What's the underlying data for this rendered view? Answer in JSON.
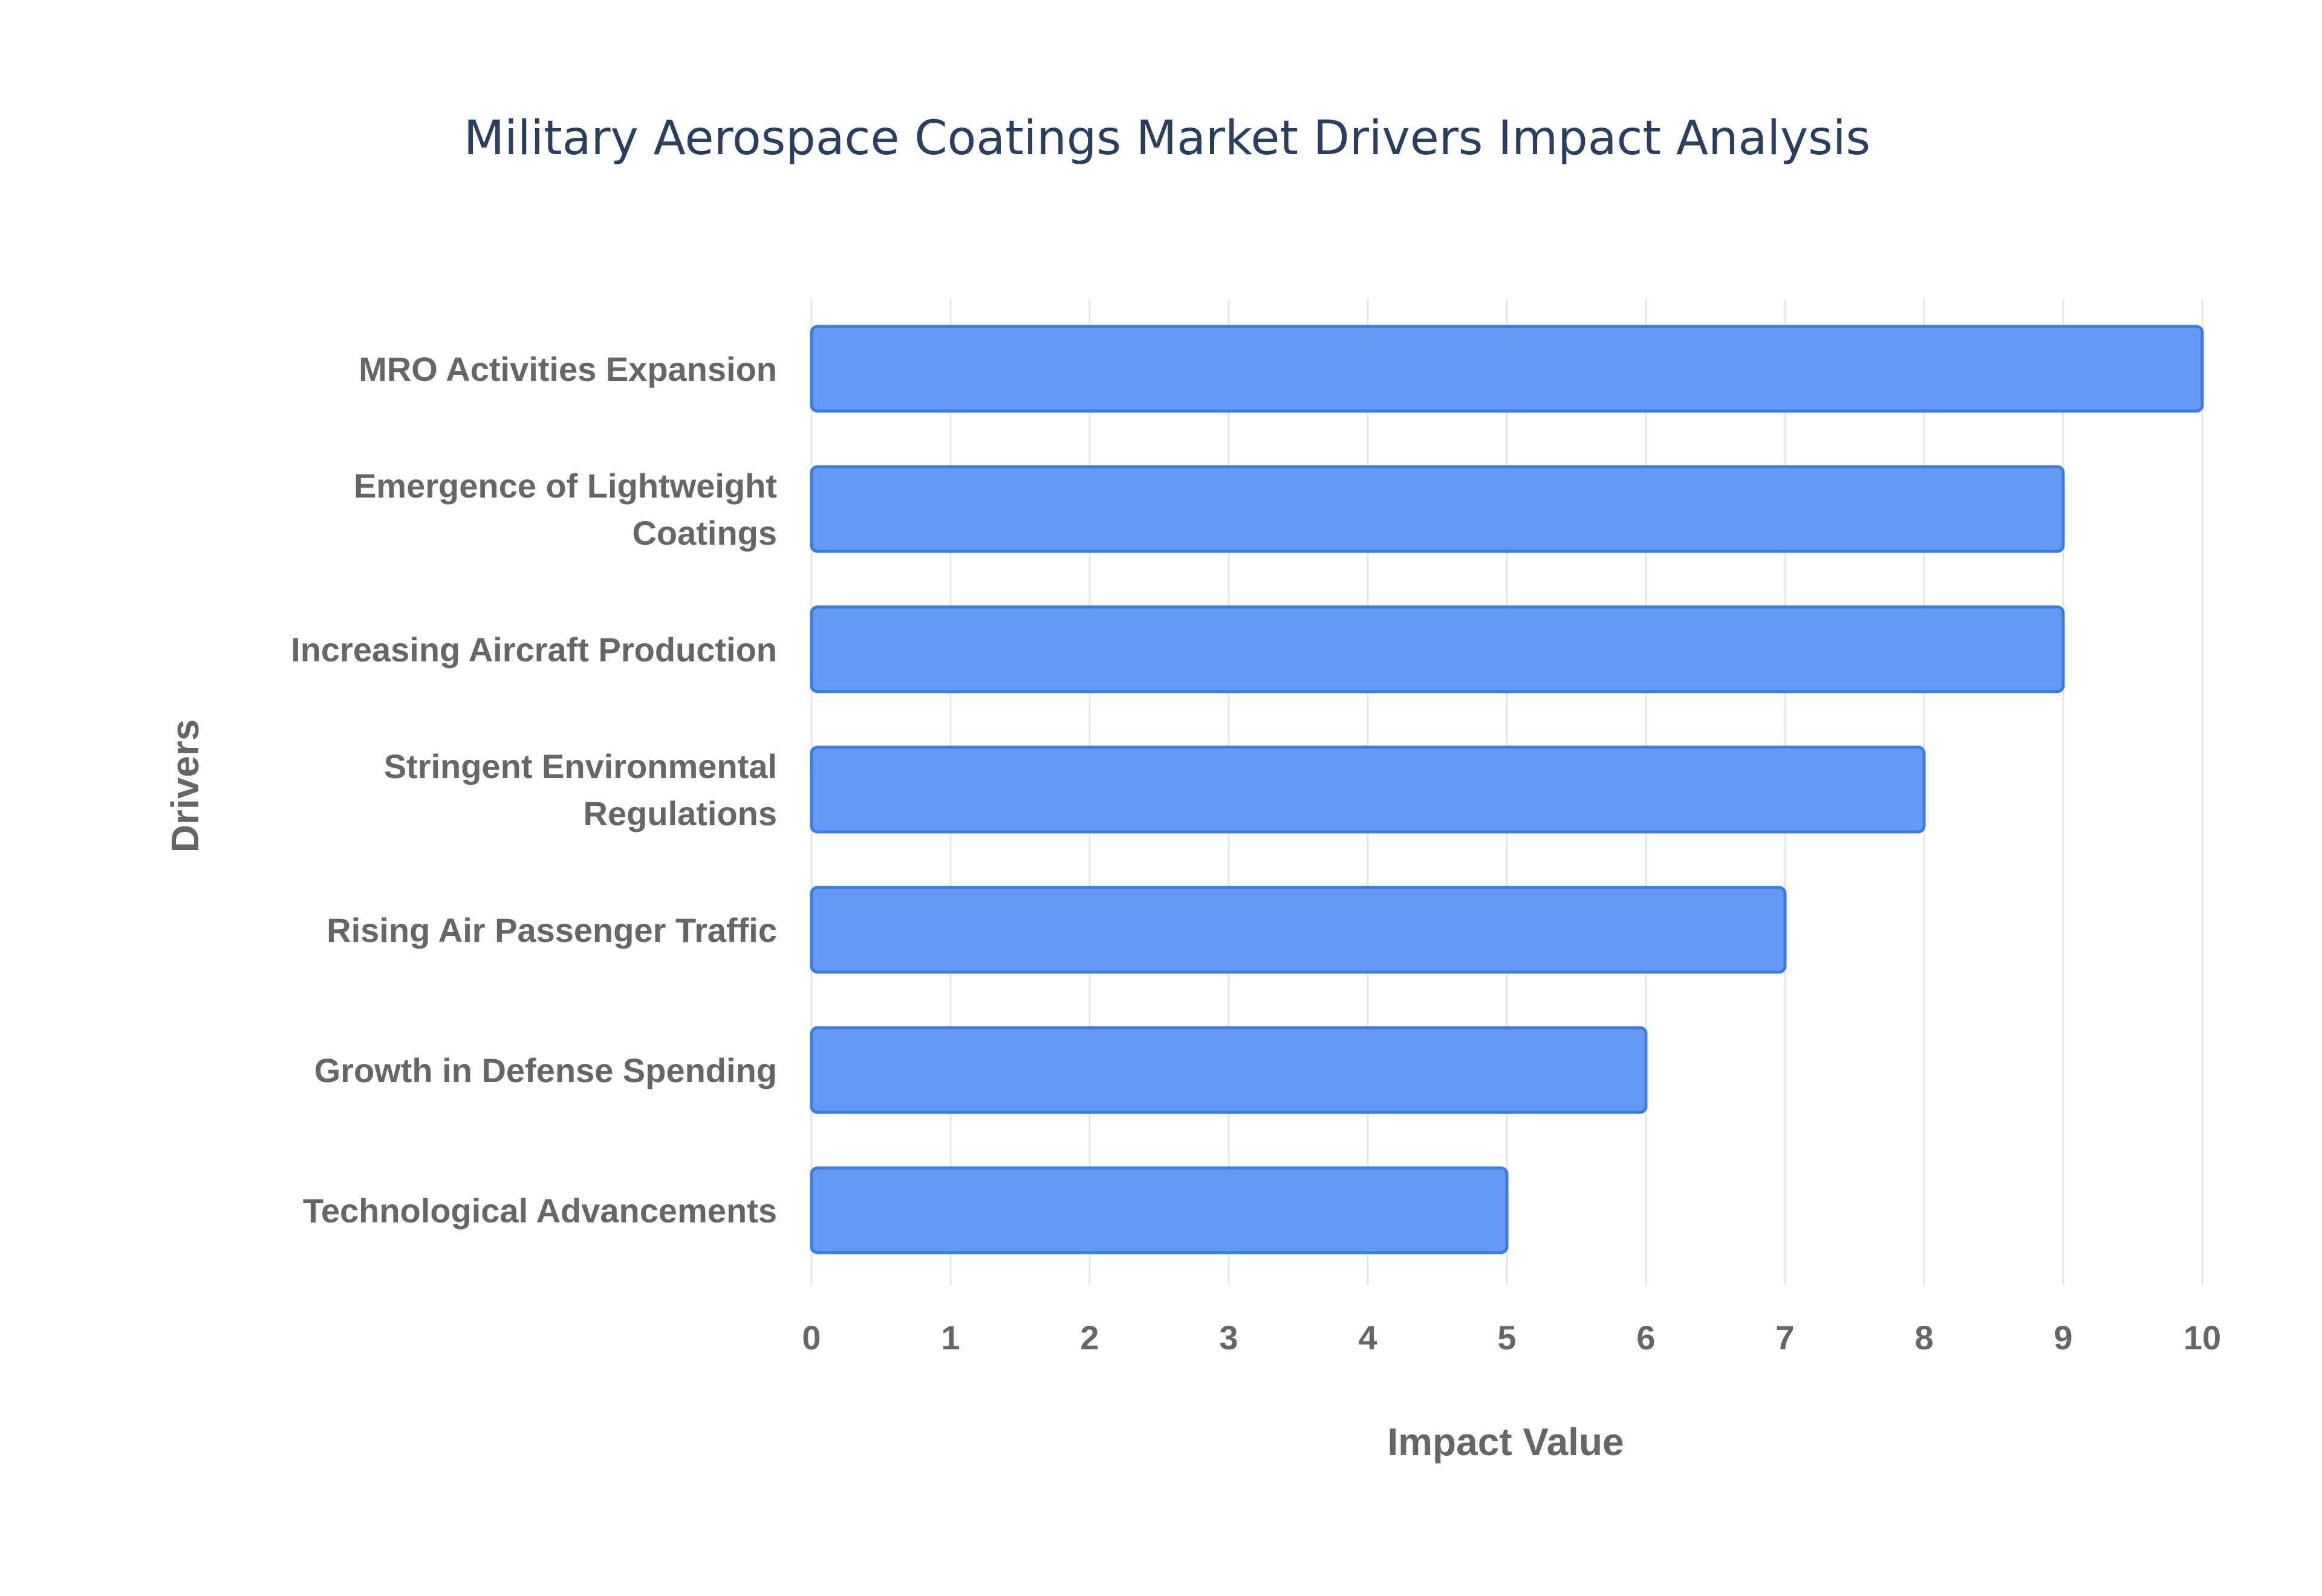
{
  "chart_data": {
    "type": "bar",
    "orientation": "horizontal",
    "title": "Military Aerospace Coatings Market Drivers Impact Analysis",
    "xlabel": "Impact Value",
    "ylabel": "Drivers",
    "xlim": [
      0,
      10
    ],
    "x_ticks": [
      "0",
      "1",
      "2",
      "3",
      "4",
      "5",
      "6",
      "7",
      "8",
      "9",
      "10"
    ],
    "grid": true,
    "legend": "none",
    "categories": [
      [
        "MRO Activities Expansion"
      ],
      [
        "Emergence of Lightweight",
        "Coatings"
      ],
      [
        "Increasing Aircraft Production"
      ],
      [
        "Stringent Environmental",
        "Regulations"
      ],
      [
        "Rising Air Passenger Traffic"
      ],
      [
        "Growth in Defense Spending"
      ],
      [
        "Technological Advancements"
      ]
    ],
    "values": [
      10,
      9,
      9,
      8,
      7,
      6,
      5
    ],
    "colors": {
      "bar_fill": "#6499f5",
      "bar_outline": "#3d7ae8",
      "text": "#666666",
      "title": "#2a3f5f",
      "grid": "#e6e6e6"
    }
  }
}
